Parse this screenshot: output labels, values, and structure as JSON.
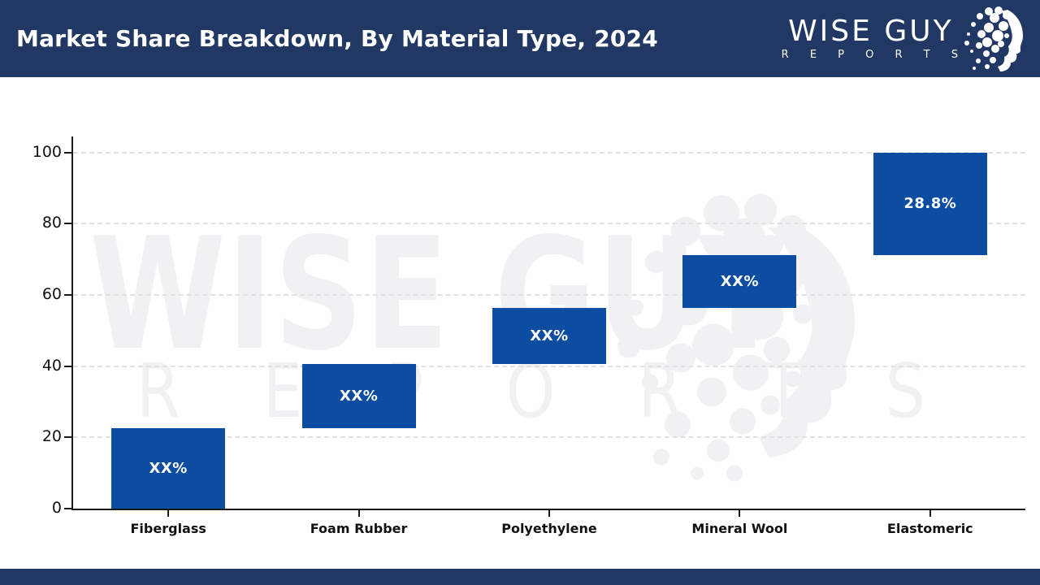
{
  "header": {
    "title": "Market Share Breakdown, By Material Type, 2024",
    "logo": {
      "line1": "WISE GUY",
      "line2": "REPORTS"
    }
  },
  "watermark": {
    "line1": "WISE GUY",
    "line2": "REPORTS"
  },
  "colors": {
    "header_bg": "#223864",
    "footer_bg": "#223864",
    "bar": "#0c4da2",
    "bar_label": "#ffffff",
    "grid": "#e1e1e1",
    "axis": "#1a1a1a",
    "tick_label": "#111111",
    "watermark": "#f1f1f4",
    "logo_text": "#ffffff"
  },
  "chart_data": {
    "type": "bar",
    "subtype": "waterfall",
    "title": "Market Share Breakdown, By Material Type, 2024",
    "categories": [
      "Fiberglass",
      "Foam Rubber",
      "Polyethylene",
      "Mineral Wool",
      "Elastomeric"
    ],
    "segments": [
      {
        "category": "Fiberglass",
        "start": 0,
        "end": 22.6,
        "value_label": "XX%"
      },
      {
        "category": "Foam Rubber",
        "start": 22.6,
        "end": 40.6,
        "value_label": "XX%"
      },
      {
        "category": "Polyethylene",
        "start": 40.6,
        "end": 56.3,
        "value_label": "XX%"
      },
      {
        "category": "Mineral Wool",
        "start": 56.3,
        "end": 71.2,
        "value_label": "XX%"
      },
      {
        "category": "Elastomeric",
        "start": 71.2,
        "end": 100,
        "value_label": "28.8%"
      }
    ],
    "xlabel": "",
    "ylabel": "",
    "ylim": [
      0,
      100
    ],
    "yticks": [
      0,
      20,
      40,
      60,
      80,
      100
    ],
    "grid": "horizontal-dashed",
    "legend": "none"
  }
}
